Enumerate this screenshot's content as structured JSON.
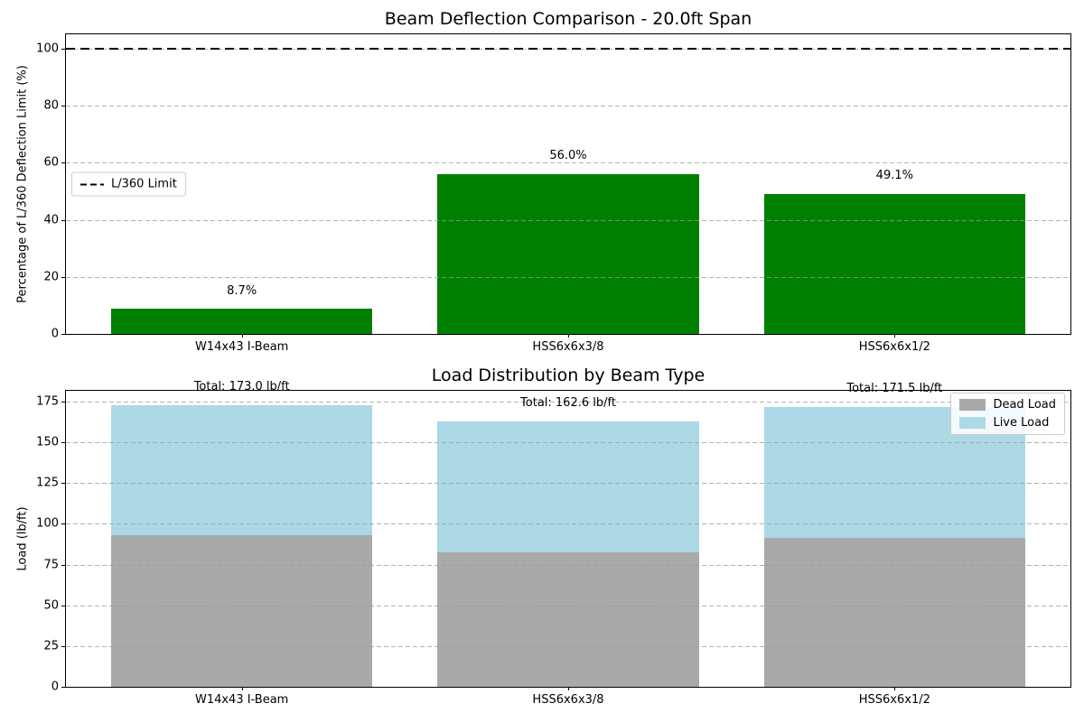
{
  "figure": {
    "background": "#ffffff"
  },
  "chart_data": [
    {
      "type": "bar",
      "title": "Beam Deflection Comparison - 20.0ft Span",
      "xlabel": "",
      "ylabel": "Percentage of L/360 Deflection Limit (%)",
      "categories": [
        "W14x43 I-Beam",
        "HSS6x6x3/8",
        "HSS6x6x1/2"
      ],
      "values": [
        8.7,
        56.0,
        49.1
      ],
      "bar_labels": [
        "8.7%",
        "56.0%",
        "49.1%"
      ],
      "bar_color": "#008000",
      "ylim": [
        0,
        105
      ],
      "yticks": [
        0,
        20,
        40,
        60,
        80,
        100
      ],
      "grid": true,
      "grid_style": "dashed",
      "ref_line": {
        "value": 100,
        "color": "#000000",
        "style": "dashed"
      },
      "legend": {
        "position": "center-left",
        "entries": [
          {
            "label": "L/360 Limit",
            "swatch": "dashed-line",
            "color": "#000000"
          }
        ]
      }
    },
    {
      "type": "stacked-bar",
      "title": "Load Distribution by Beam Type",
      "xlabel": "",
      "ylabel": "Load (lb/ft)",
      "categories": [
        "W14x43 I-Beam",
        "HSS6x6x3/8",
        "HSS6x6x1/2"
      ],
      "series": [
        {
          "name": "Dead Load",
          "color": "#a9a9a9",
          "values": [
            93.0,
            82.6,
            91.5
          ]
        },
        {
          "name": "Live Load",
          "color": "#add8e6",
          "values": [
            80.0,
            80.0,
            80.0
          ]
        }
      ],
      "totals": [
        173.0,
        162.6,
        171.5
      ],
      "total_labels": [
        "Total: 173.0 lb/ft",
        "Total: 162.6 lb/ft",
        "Total: 171.5 lb/ft"
      ],
      "ylim": [
        0,
        181.65
      ],
      "yticks": [
        0,
        25,
        50,
        75,
        100,
        125,
        150,
        175
      ],
      "grid": true,
      "grid_style": "dashed",
      "legend": {
        "position": "upper-right",
        "entries": [
          {
            "label": "Dead Load",
            "swatch": "rect",
            "color": "#a9a9a9"
          },
          {
            "label": "Live Load",
            "swatch": "rect",
            "color": "#add8e6"
          }
        ]
      }
    }
  ]
}
